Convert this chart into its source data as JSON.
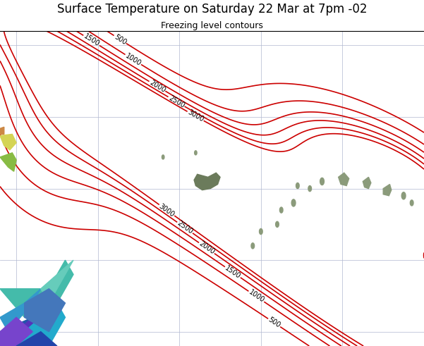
{
  "title": "Surface Temperature on Saturday 22 Mar at 7pm -02",
  "subtitle": "Freezing level contours",
  "title_fontsize": 12,
  "subtitle_fontsize": 9,
  "bg_ocean": "#d0d8ee",
  "bg_map_frame": "#ffffff",
  "contour_color": "#cc0000",
  "contour_linewidth": 1.2,
  "contour_label_fontsize": 7,
  "grid_color": "#b0b8d0",
  "grid_linewidth": 0.5,
  "lon_min": -62,
  "lon_max": -10,
  "lat_min": -66,
  "lat_max": -44
}
